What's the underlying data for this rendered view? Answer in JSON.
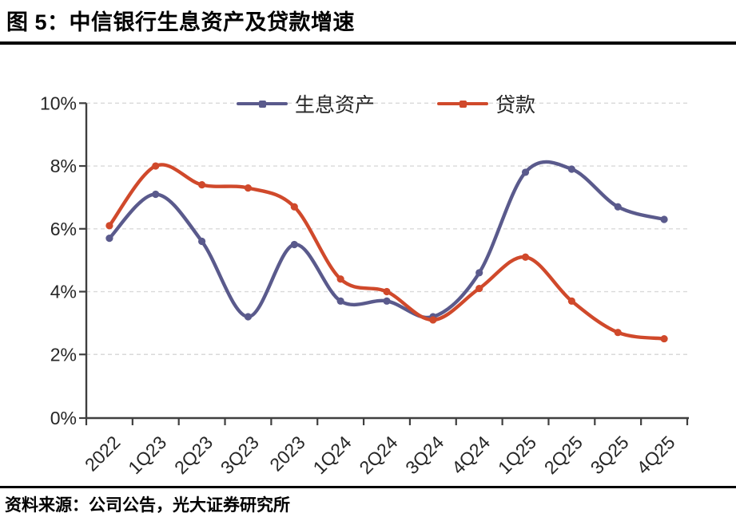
{
  "title": "图 5：中信银行生息资产及贷款增速",
  "source": "资料来源：公司公告，光大证券研究所",
  "chart_data": {
    "type": "line",
    "title": "图 5：中信银行生息资产及贷款增速",
    "categories": [
      "2022",
      "1Q23",
      "2Q23",
      "3Q23",
      "2023",
      "1Q24",
      "2Q24",
      "3Q24",
      "4Q24",
      "1Q25",
      "2Q25",
      "3Q25",
      "4Q25"
    ],
    "series": [
      {
        "name": "生息资产",
        "color": "#5A5A8C",
        "values": [
          5.7,
          7.1,
          5.6,
          3.2,
          5.5,
          3.7,
          3.7,
          3.2,
          4.6,
          7.8,
          7.9,
          6.7,
          6.3
        ]
      },
      {
        "name": "贷款",
        "color": "#D0492B",
        "values": [
          6.1,
          8.0,
          7.4,
          7.3,
          6.7,
          4.4,
          4.0,
          3.1,
          4.1,
          5.1,
          3.7,
          2.7,
          2.5
        ]
      }
    ],
    "ylim": [
      0,
      10
    ],
    "yticks": [
      0,
      2,
      4,
      6,
      8,
      10
    ],
    "ytick_labels": [
      "0%",
      "2%",
      "4%",
      "6%",
      "8%",
      "10%"
    ],
    "ytick_format": "percent",
    "grid": "horizontal-dashed",
    "grid_color": "#D9D9D9",
    "axis_color": "#3F3F3F",
    "tick_label_color": "#262626",
    "legend_position": "top-center",
    "smooth": true,
    "xlabel": "",
    "ylabel": ""
  }
}
